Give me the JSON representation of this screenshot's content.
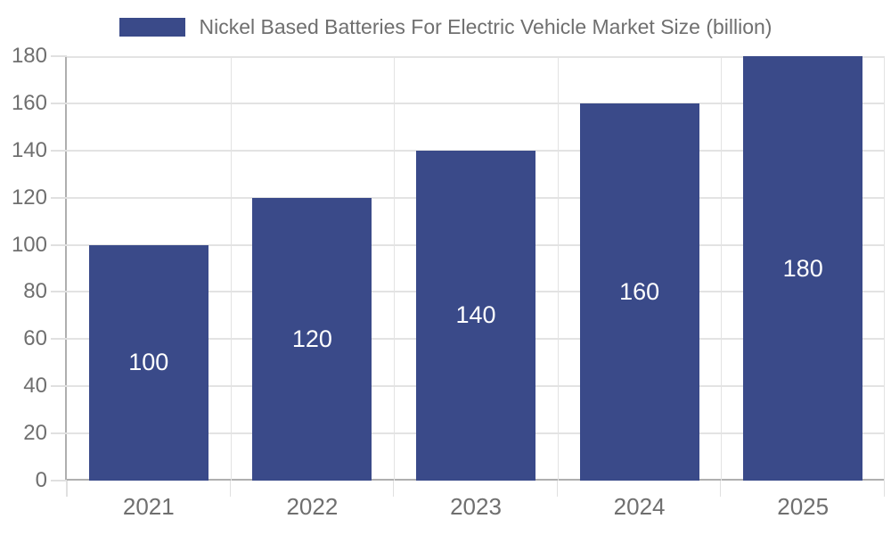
{
  "chart_data": {
    "type": "bar",
    "title": "Nickel Based Batteries For Electric Vehicle Market Size (billion)",
    "categories": [
      "2021",
      "2022",
      "2023",
      "2024",
      "2025"
    ],
    "values": [
      100,
      120,
      140,
      160,
      180
    ],
    "series_name": "Nickel Based Batteries For Electric Vehicle Market Size (billion)",
    "xlabel": "",
    "ylabel": "",
    "ylim": [
      0,
      180
    ],
    "ytick_step": 20,
    "yticks": [
      0,
      20,
      40,
      60,
      80,
      100,
      120,
      140,
      160,
      180
    ],
    "grid": true,
    "legend_position": "top",
    "bar_label_position": "center",
    "colors": {
      "bar": "#3A4A89",
      "bar_label": "#FFFFFF",
      "legend_text": "#6F6F6F",
      "tick_label": "#6F6F6F",
      "axis_line": "#AFAFAF",
      "gridline": "#E3E3E3",
      "tick_mark": "#E0E0E0",
      "background": "#FFFFFF"
    }
  }
}
